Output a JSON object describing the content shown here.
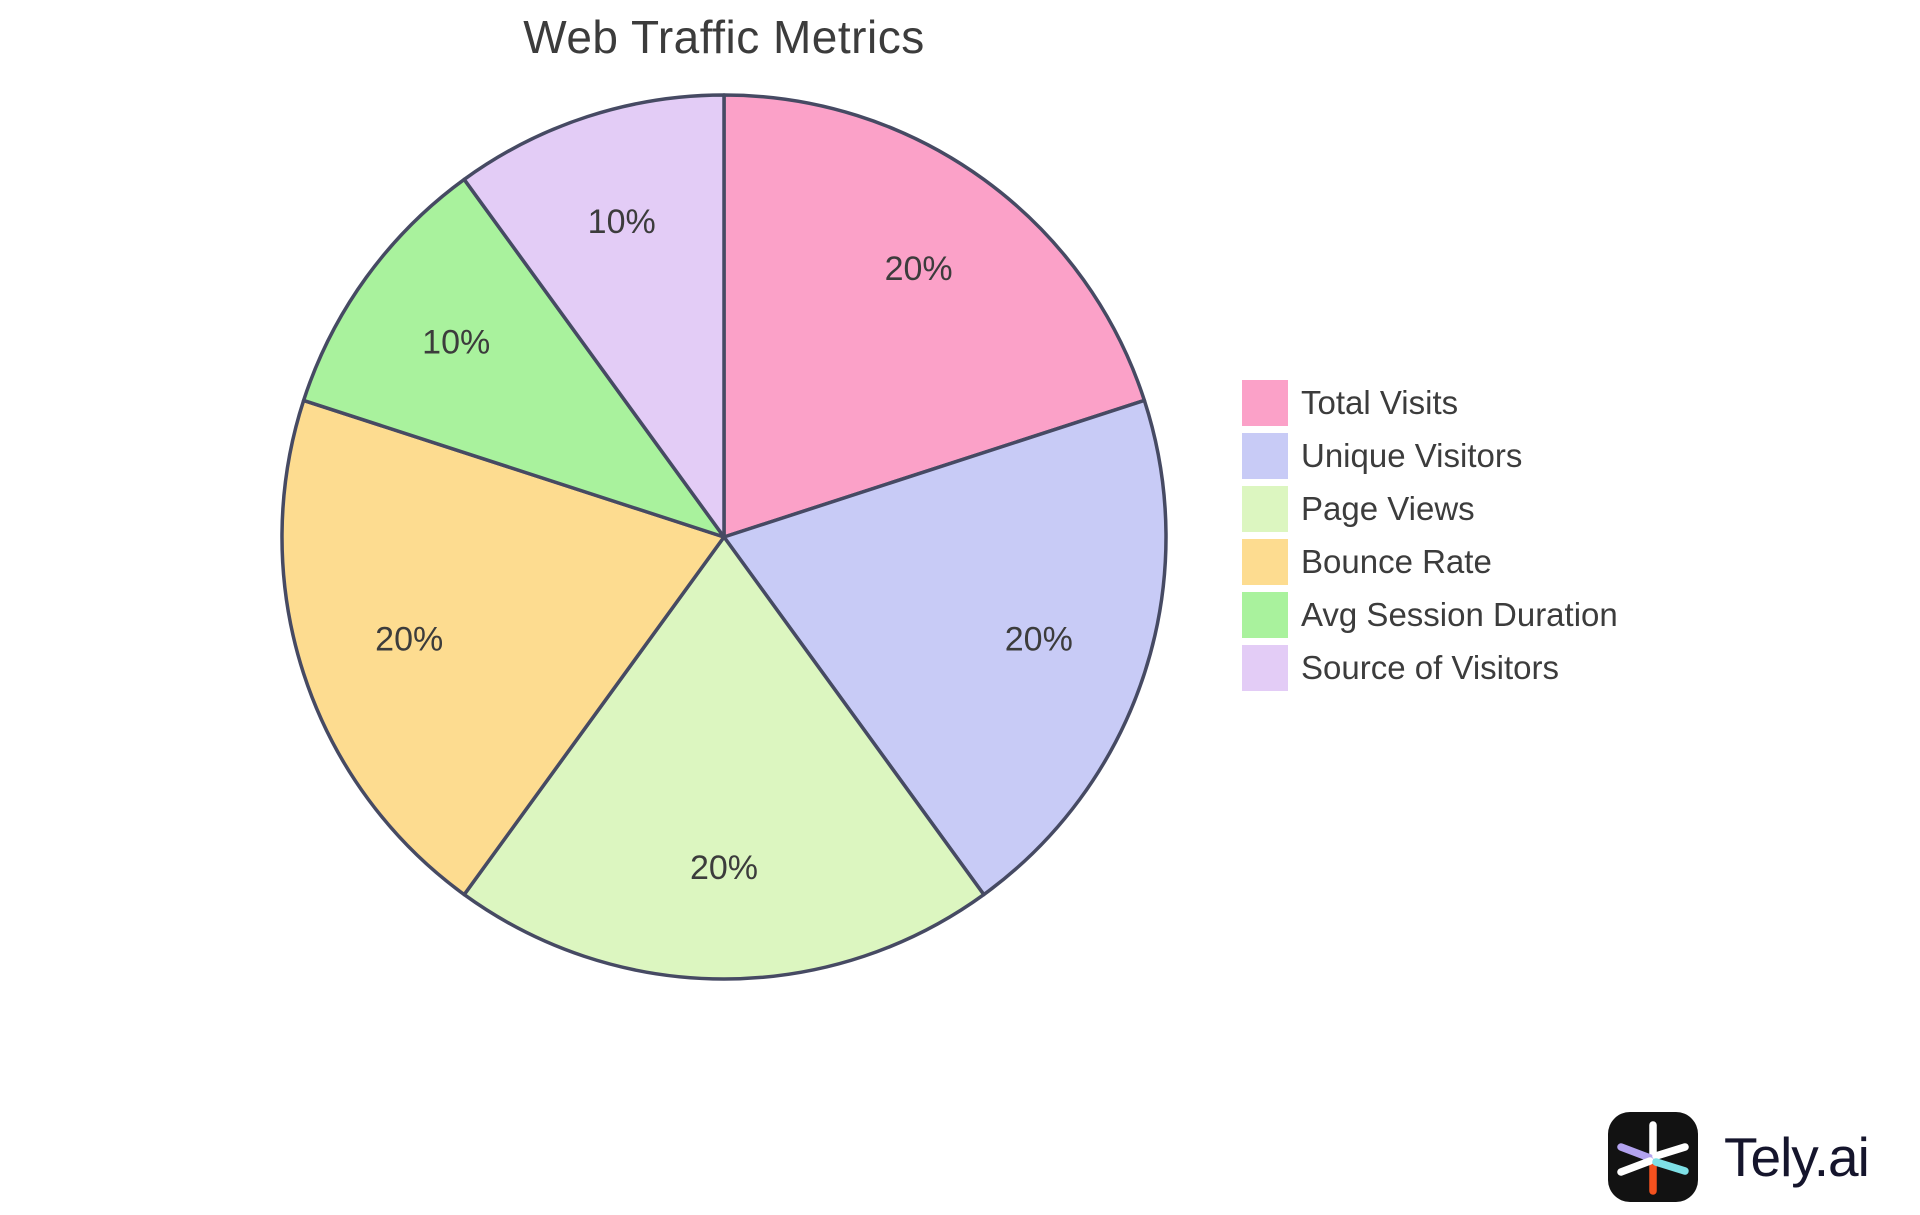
{
  "page": {
    "background": "#ffffff"
  },
  "chart_data": {
    "type": "pie",
    "title": "Web Traffic Metrics",
    "labels": [
      "Total Visits",
      "Unique Visitors",
      "Page Views",
      "Bounce Rate",
      "Avg Session Duration",
      "Source of Visitors"
    ],
    "values": [
      20,
      20,
      20,
      20,
      10,
      10
    ],
    "slice_labels": [
      "20%",
      "20%",
      "20%",
      "20%",
      "10%",
      "10%"
    ],
    "colors": [
      "#FBA1C8",
      "#C8CBF6",
      "#DCF6C0",
      "#FDDC90",
      "#A9F29D",
      "#E3CCF6"
    ],
    "edge_color": "#464A63",
    "label_color": "#3c3c3c",
    "start_angle": "top",
    "direction": "clockwise",
    "legend_position": "right",
    "grid": "off"
  },
  "branding": {
    "logo_text": "Tely.ai",
    "icon_name": "asterisk-spark-icon",
    "icon_background": "#121212",
    "icon_ray_colors": {
      "up": "#FFFFFF",
      "down": "#F4511E",
      "upper_left": "#B3A3EF",
      "lower_left": "#FFFFFF",
      "upper_right": "#FFFFFF",
      "lower_right": "#7EE0E6"
    }
  }
}
